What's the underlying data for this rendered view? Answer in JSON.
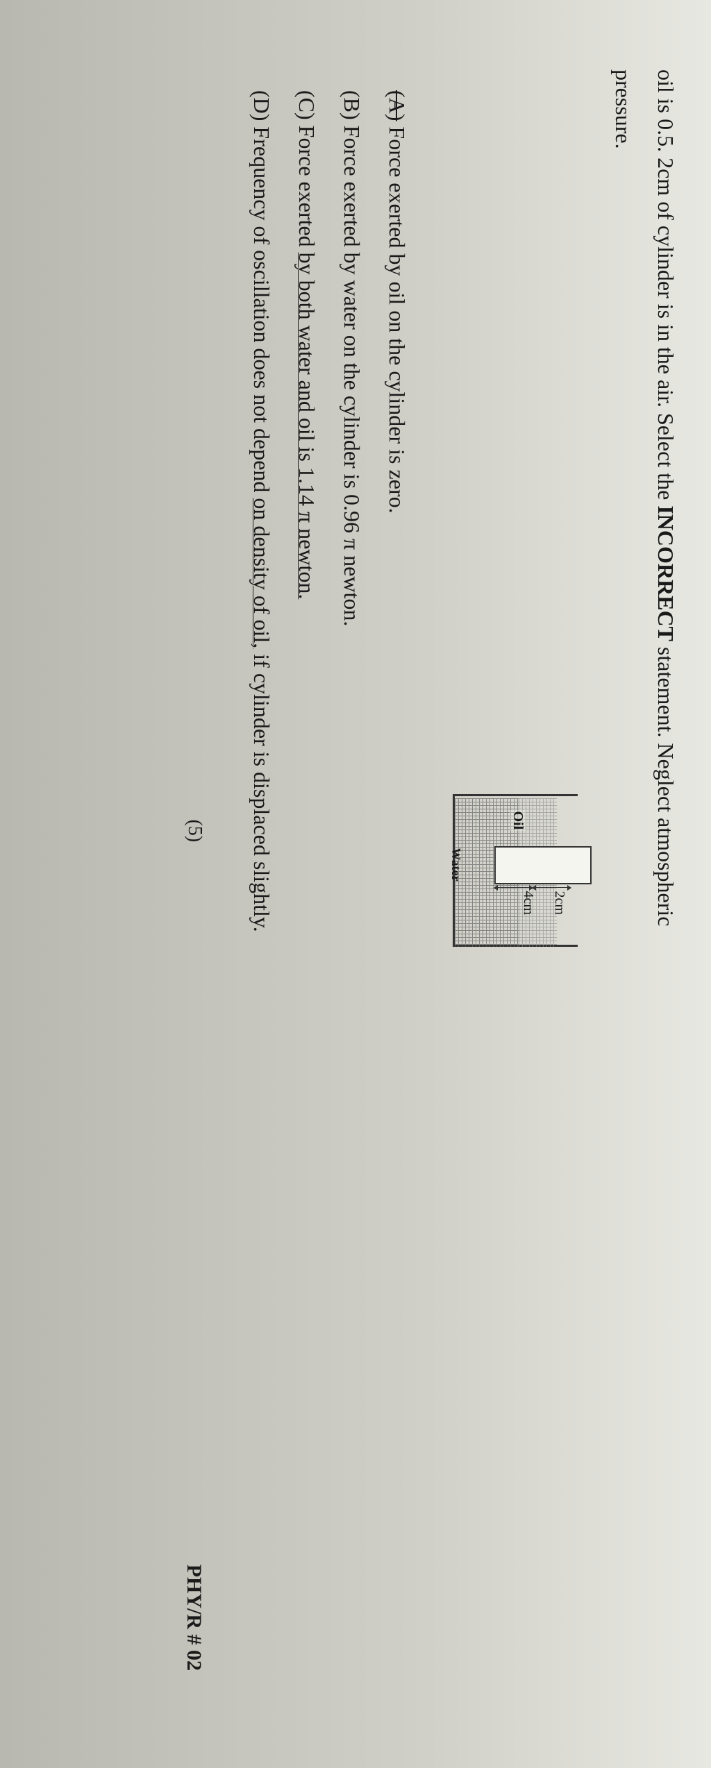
{
  "question": {
    "intro_line1": "oil is 0.5. 2cm of cylinder is in the air. Select the ",
    "incorrect_word": "INCORRECT",
    "intro_line1_end": " statement. Neglect atmospheric",
    "intro_line2": "pressure."
  },
  "diagram": {
    "oil_label": "Oil",
    "water_label": "Water",
    "dim_top": "2cm",
    "dim_bottom": "4cm"
  },
  "options": {
    "a": {
      "label": "(A)",
      "text": " Force exerted by oil on the cylinder is zero."
    },
    "b": {
      "label": "(B)",
      "text": " Force exerted by water on the cylinder is 0.96 π newton."
    },
    "c": {
      "label": "(C)",
      "text_part1": " Force exerted ",
      "text_underlined": "by both water and oil is 1.14 π newton.",
      "text_part2": ""
    },
    "d": {
      "label": "(D)",
      "text_part1": " Frequency of oscillation does not depend ",
      "text_underlined": "on density of oil,",
      "text_part2": " if cylinder is displaced slightly."
    }
  },
  "footer": {
    "page_number": "(5)",
    "code": "PHY/R # 02"
  },
  "colors": {
    "text": "#1a1a1a",
    "background": "#f5f5f0",
    "diagram_border": "#333333"
  }
}
